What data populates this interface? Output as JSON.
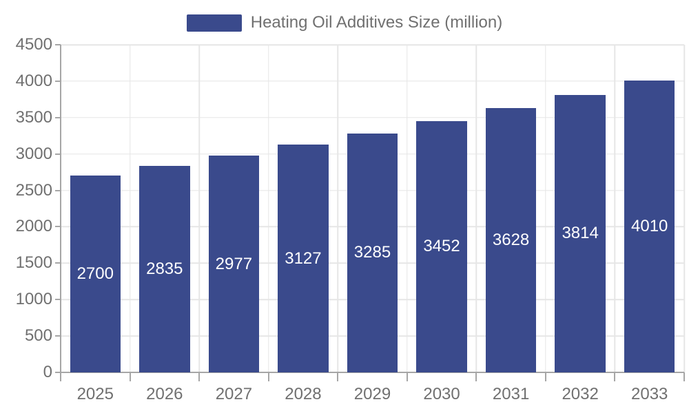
{
  "legend": {
    "label": "Heating Oil Additives Size (million)"
  },
  "chart_data": {
    "type": "bar",
    "title": "Heating Oil Additives Size (million)",
    "categories": [
      "2025",
      "2026",
      "2027",
      "2028",
      "2029",
      "2030",
      "2031",
      "2032",
      "2033"
    ],
    "values": [
      2700,
      2835,
      2977,
      3127,
      3285,
      3452,
      3628,
      3814,
      4010
    ],
    "xlabel": "",
    "ylabel": "",
    "ylim": [
      0,
      4500
    ],
    "ytick_step": 500,
    "ytick_labels": [
      "0",
      "500",
      "1000",
      "1500",
      "2000",
      "2500",
      "3000",
      "3500",
      "4000",
      "4500"
    ],
    "grid": true,
    "legend_position": "top-center",
    "bar_label_position": "inside-center"
  },
  "colors": {
    "bar": "#3A4A8C",
    "bar_value_text": "#FFFFFF",
    "grid_line": "#E6E6E6",
    "axis_line": "#A6A6A6",
    "axis_label": "#707070",
    "legend_text": "#707070",
    "background": "#FFFFFF"
  }
}
